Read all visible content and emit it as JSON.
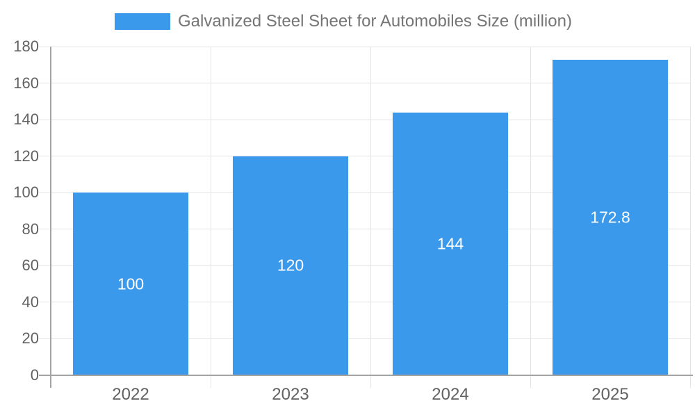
{
  "legend": {
    "label": "Galvanized Steel Sheet for Automobiles Size (million)"
  },
  "chart_data": {
    "type": "bar",
    "title": "Galvanized Steel Sheet for Automobiles Size (million)",
    "categories": [
      "2022",
      "2023",
      "2024",
      "2025"
    ],
    "values": [
      100,
      120,
      144,
      172.8
    ],
    "value_labels": [
      "100",
      "120",
      "144",
      "172.8"
    ],
    "xlabel": "",
    "ylabel": "",
    "ylim": [
      0,
      180
    ],
    "ytick_interval": 20,
    "ytick_labels": [
      "0",
      "20",
      "40",
      "60",
      "80",
      "100",
      "120",
      "140",
      "160",
      "180"
    ],
    "grid": true,
    "legend_position": "top",
    "colors": {
      "bar": "#3B99EC",
      "gridline": "#e4e4e4",
      "axis_line": "#a3a3a3",
      "axis_label": "#616161",
      "legend_text": "#757575",
      "value_label": "#ffffff",
      "background": "#ffffff"
    }
  }
}
